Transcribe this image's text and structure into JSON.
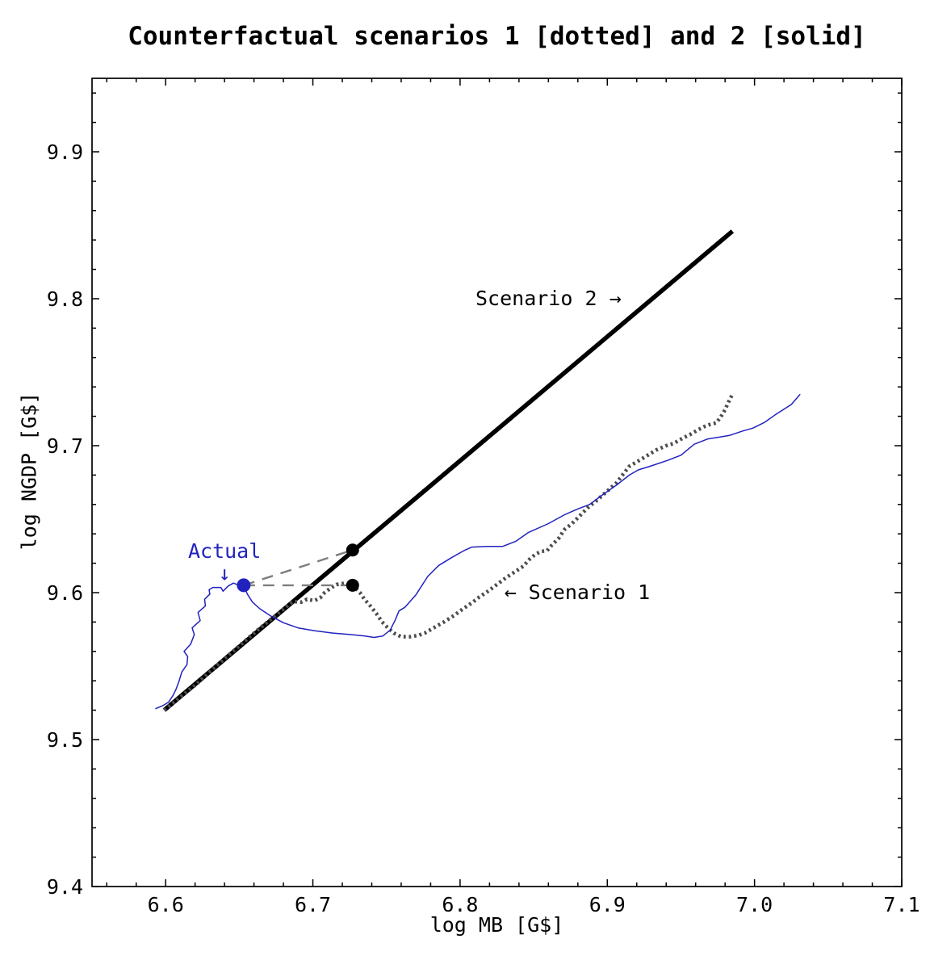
{
  "chart_data": {
    "type": "line",
    "title": "Counterfactual scenarios 1 [dotted] and 2 [solid]",
    "xlabel": "log MB [G$]",
    "ylabel": "log NGDP [G$]",
    "xlim": [
      6.55,
      7.1
    ],
    "ylim": [
      9.4,
      9.95
    ],
    "x_ticks": [
      6.6,
      6.7,
      6.8,
      6.9,
      7.0,
      7.1
    ],
    "y_ticks": [
      9.4,
      9.5,
      9.6,
      9.7,
      9.8,
      9.9
    ],
    "minor_tick_step": 0.02,
    "grid": false,
    "legend_position": "none",
    "colors": {
      "actual": "#2222bf",
      "scenario1": "#4d4d4d",
      "scenario2": "#000000",
      "connector": "#7d7d7d"
    },
    "series": [
      {
        "name": "Scenario 2",
        "style": "solid",
        "color": "#000000",
        "width": 5.5,
        "points": [
          [
            6.599,
            9.52
          ],
          [
            6.985,
            9.846
          ]
        ]
      },
      {
        "name": "Scenario 1",
        "style": "dotted",
        "color": "#4d4d4d",
        "width": 4.6,
        "points": [
          [
            6.599,
            9.52
          ],
          [
            6.62,
            9.537
          ],
          [
            6.641,
            9.556
          ],
          [
            6.663,
            9.575
          ],
          [
            6.6865,
            9.594
          ],
          [
            6.692,
            9.5935
          ],
          [
            6.696,
            9.5955
          ],
          [
            6.701,
            9.5945
          ],
          [
            6.705,
            9.5965
          ],
          [
            6.708,
            9.6
          ],
          [
            6.712,
            9.603
          ],
          [
            6.716,
            9.6055
          ],
          [
            6.722,
            9.6065
          ],
          [
            6.727,
            9.605
          ],
          [
            6.732,
            9.6
          ],
          [
            6.735,
            9.5955
          ],
          [
            6.739,
            9.591
          ],
          [
            6.743,
            9.586
          ],
          [
            6.747,
            9.58
          ],
          [
            6.751,
            9.576
          ],
          [
            6.755,
            9.5725
          ],
          [
            6.76,
            9.57
          ],
          [
            6.766,
            9.57
          ],
          [
            6.772,
            9.571
          ],
          [
            6.776,
            9.5725
          ],
          [
            6.782,
            9.576
          ],
          [
            6.789,
            9.58
          ],
          [
            6.796,
            9.5845
          ],
          [
            6.802,
            9.589
          ],
          [
            6.808,
            9.593
          ],
          [
            6.813,
            9.597
          ],
          [
            6.819,
            9.601
          ],
          [
            6.825,
            9.6055
          ],
          [
            6.831,
            9.61
          ],
          [
            6.837,
            9.614
          ],
          [
            6.843,
            9.618
          ],
          [
            6.847,
            9.6225
          ],
          [
            6.851,
            9.626
          ],
          [
            6.855,
            9.628
          ],
          [
            6.859,
            9.6285
          ],
          [
            6.862,
            9.632
          ],
          [
            6.867,
            9.637
          ],
          [
            6.871,
            9.643
          ],
          [
            6.876,
            9.647
          ],
          [
            6.88,
            9.651
          ],
          [
            6.884,
            9.655
          ],
          [
            6.888,
            9.659
          ],
          [
            6.892,
            9.662
          ],
          [
            6.897,
            9.6665
          ],
          [
            6.901,
            9.67
          ],
          [
            6.906,
            9.6745
          ],
          [
            6.915,
            9.686
          ],
          [
            6.925,
            9.692
          ],
          [
            6.933,
            9.697
          ],
          [
            6.94,
            9.7
          ],
          [
            6.945,
            9.7015
          ],
          [
            6.951,
            9.705
          ],
          [
            6.956,
            9.7075
          ],
          [
            6.962,
            9.711
          ],
          [
            6.966,
            9.713
          ],
          [
            6.97,
            9.7145
          ],
          [
            6.974,
            9.7155
          ],
          [
            6.977,
            9.7195
          ],
          [
            6.98,
            9.7245
          ],
          [
            6.982,
            9.729
          ],
          [
            6.985,
            9.735
          ]
        ]
      },
      {
        "name": "Actual",
        "style": "solid",
        "color": "#2222bf",
        "width": 1.5,
        "points": [
          [
            6.593,
            9.521
          ],
          [
            6.598,
            9.523
          ],
          [
            6.602,
            9.5255
          ],
          [
            6.605,
            9.53
          ],
          [
            6.607,
            9.534
          ],
          [
            6.609,
            9.5395
          ],
          [
            6.611,
            9.546
          ],
          [
            6.6145,
            9.551
          ],
          [
            6.615,
            9.5565
          ],
          [
            6.6125,
            9.56
          ],
          [
            6.617,
            9.565
          ],
          [
            6.6195,
            9.5715
          ],
          [
            6.618,
            9.576
          ],
          [
            6.6235,
            9.581
          ],
          [
            6.622,
            9.5865
          ],
          [
            6.627,
            9.591
          ],
          [
            6.6265,
            9.5955
          ],
          [
            6.63,
            9.599
          ],
          [
            6.6295,
            9.602
          ],
          [
            6.632,
            9.6035
          ],
          [
            6.6375,
            9.6035
          ],
          [
            6.639,
            9.601
          ],
          [
            6.6425,
            9.6045
          ],
          [
            6.646,
            9.6065
          ],
          [
            6.65,
            9.605
          ],
          [
            6.653,
            9.605
          ],
          [
            6.6555,
            9.599
          ],
          [
            6.659,
            9.5935
          ],
          [
            6.664,
            9.589
          ],
          [
            6.6715,
            9.584
          ],
          [
            6.68,
            9.5795
          ],
          [
            6.69,
            9.576
          ],
          [
            6.7015,
            9.574
          ],
          [
            6.7135,
            9.5725
          ],
          [
            6.7255,
            9.5715
          ],
          [
            6.7355,
            9.5705
          ],
          [
            6.7415,
            9.5695
          ],
          [
            6.7475,
            9.5705
          ],
          [
            6.7525,
            9.5745
          ],
          [
            6.756,
            9.5815
          ],
          [
            6.7585,
            9.5875
          ],
          [
            6.7625,
            9.59
          ],
          [
            6.77,
            9.5985
          ],
          [
            6.778,
            9.611
          ],
          [
            6.7855,
            9.6185
          ],
          [
            6.7945,
            9.624
          ],
          [
            6.8025,
            9.6285
          ],
          [
            6.808,
            9.631
          ],
          [
            6.8185,
            9.6315
          ],
          [
            6.829,
            9.6315
          ],
          [
            6.838,
            9.635
          ],
          [
            6.8465,
            9.641
          ],
          [
            6.86,
            9.647
          ],
          [
            6.871,
            9.653
          ],
          [
            6.88,
            9.657
          ],
          [
            6.888,
            9.66
          ],
          [
            6.896,
            9.666
          ],
          [
            6.906,
            9.673
          ],
          [
            6.915,
            9.68
          ],
          [
            6.921,
            9.6835
          ],
          [
            6.929,
            9.686
          ],
          [
            6.941,
            9.69
          ],
          [
            6.95,
            9.6935
          ],
          [
            6.959,
            9.701
          ],
          [
            6.968,
            9.7045
          ],
          [
            6.983,
            9.707
          ],
          [
            6.992,
            9.71
          ],
          [
            6.999,
            9.712
          ],
          [
            7.007,
            9.716
          ],
          [
            7.014,
            9.721
          ],
          [
            7.025,
            9.728
          ],
          [
            7.031,
            9.735
          ]
        ]
      }
    ],
    "markers": [
      {
        "name": "actual-endpoint",
        "x": 6.653,
        "y": 9.605,
        "color": "#2222bf",
        "r": 8.5
      },
      {
        "name": "scenario2-marker",
        "x": 6.727,
        "y": 9.629,
        "color": "#000000",
        "r": 8
      },
      {
        "name": "scenario1-marker",
        "x": 6.727,
        "y": 9.605,
        "color": "#000000",
        "r": 8
      }
    ],
    "connectors": [
      {
        "from": [
          6.653,
          9.605
        ],
        "to": [
          6.727,
          9.629
        ]
      },
      {
        "from": [
          6.653,
          9.605
        ],
        "to": [
          6.727,
          9.605
        ]
      }
    ],
    "annotations": [
      {
        "name": "scenario2-label",
        "text": "Scenario 2 →",
        "x": 6.86,
        "y": 9.8005,
        "color": "#000000"
      },
      {
        "name": "scenario1-label",
        "text": "← Scenario 1",
        "x": 6.8795,
        "y": 9.6005,
        "color": "#000000"
      },
      {
        "name": "actual-label",
        "text": "Actual",
        "x": 6.64,
        "y": 9.6285,
        "color": "#2222bf"
      },
      {
        "name": "actual-arrow",
        "text": "↓",
        "x": 6.64,
        "y": 9.6135,
        "color": "#2222bf"
      }
    ]
  }
}
